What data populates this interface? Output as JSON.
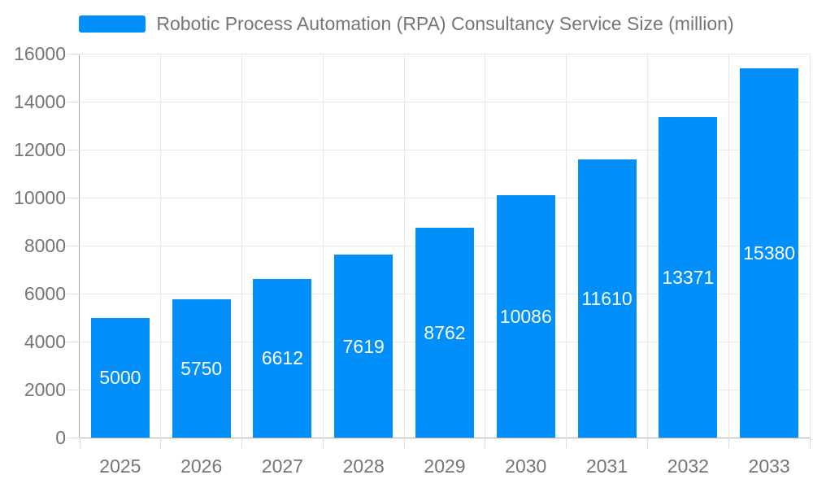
{
  "legend": {
    "label": "Robotic Process Automation (RPA) Consultancy Service Size (million)"
  },
  "chart_data": {
    "type": "bar",
    "title": "Robotic Process Automation (RPA) Consultancy Service Size (million)",
    "categories": [
      "2025",
      "2026",
      "2027",
      "2028",
      "2029",
      "2030",
      "2031",
      "2032",
      "2033"
    ],
    "values": [
      5000,
      5750,
      6612,
      7619,
      8762,
      10086,
      11610,
      13371,
      15380
    ],
    "xlabel": "",
    "ylabel": "",
    "ylim": [
      0,
      16000
    ],
    "ytick_step": 2000,
    "ytick_labels": [
      "0",
      "2000",
      "4000",
      "6000",
      "8000",
      "10000",
      "12000",
      "14000",
      "16000"
    ],
    "grid": true,
    "legend_position": "top",
    "bar_color": "#008FFB",
    "bar_value_label_color": "#ffffff",
    "axis_line_color": "#ababab",
    "grid_line_color": "#e8e8e8",
    "tick_mark_color": "#dcdcdc",
    "tick_label_color": "#757575"
  }
}
